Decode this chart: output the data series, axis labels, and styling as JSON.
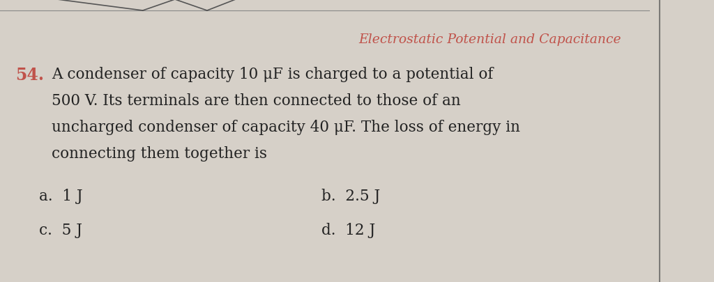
{
  "background_color": "#d6d0c8",
  "right_page_color": "#c8c4bc",
  "spine_color": "#555555",
  "title_text": "Electrostatic Potential and Capacitance",
  "title_color": "#c0524a",
  "title_fontsize": 13.5,
  "title_style": "italic",
  "question_number": "54.",
  "question_number_color": "#c0524a",
  "question_number_fontsize": 17,
  "question_text_line1": "A condenser of capacity 10 μF is charged to a potential of",
  "question_text_line2": "500 V. Its terminals are then connected to those of an",
  "question_text_line3": "uncharged condenser of capacity 40 μF. The loss of energy in",
  "question_text_line4": "connecting them together is",
  "question_fontsize": 15.5,
  "question_color": "#222222",
  "option_a": "a.  1 J",
  "option_b": "b.  2.5 J",
  "option_c": "c.  5 J",
  "option_d": "d.  12 J",
  "option_fontsize": 15.5,
  "option_color": "#222222",
  "fig_width": 10.24,
  "fig_height": 4.06,
  "top_lines_color": "#555555",
  "top_line_color": "#888888"
}
